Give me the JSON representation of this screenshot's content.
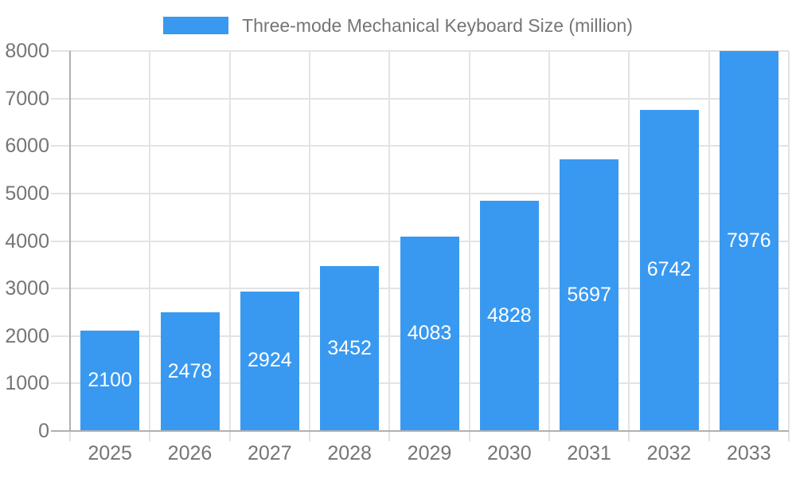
{
  "chart_data": {
    "type": "bar",
    "title": "Three-mode Mechanical Keyboard Size (million)",
    "legend_entries": [
      "Three-mode Mechanical Keyboard Size (million)"
    ],
    "legend_position": "top-center",
    "categories": [
      "2025",
      "2026",
      "2027",
      "2028",
      "2029",
      "2030",
      "2031",
      "2032",
      "2033"
    ],
    "values": [
      2100,
      2478,
      2924,
      3452,
      4083,
      4828,
      5697,
      6742,
      7976
    ],
    "value_labels_visible": true,
    "value_label_placement": "centered-inside-bar",
    "xlabel": "",
    "ylabel": "",
    "ylim": [
      0,
      8000
    ],
    "ytick_step": 1000,
    "yticks": [
      0,
      1000,
      2000,
      3000,
      4000,
      5000,
      6000,
      7000,
      8000
    ],
    "grid": true,
    "colors": {
      "bar": "#3999f0",
      "value_text": "#ffffff",
      "axis_text": "#757575",
      "gridline": "#e3e3e3",
      "axis_line": "#b0b0b0",
      "background": "#ffffff"
    }
  }
}
